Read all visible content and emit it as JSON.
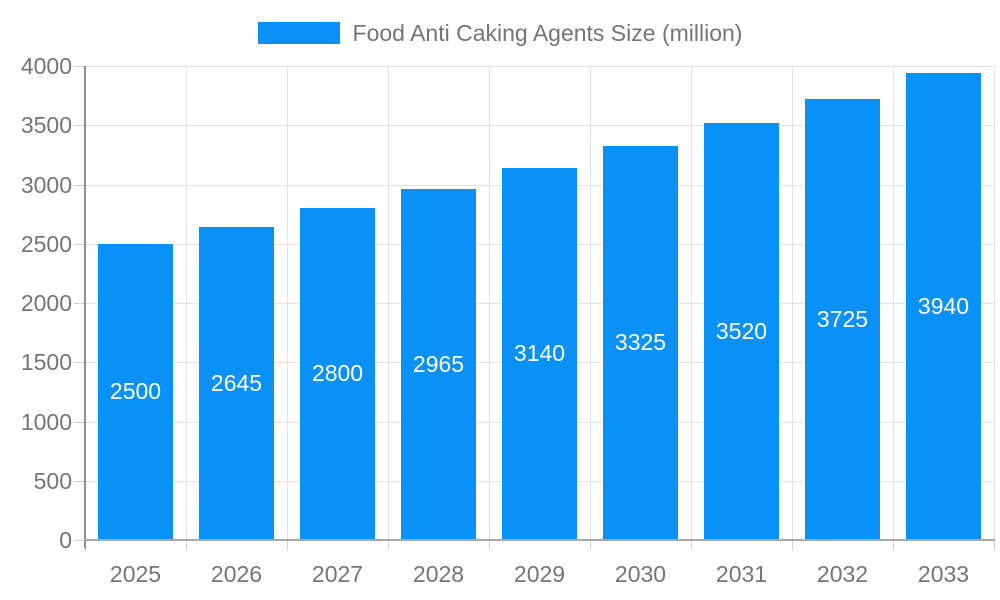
{
  "legend": {
    "label": "Food Anti Caking Agents Size (million)"
  },
  "chart_data": {
    "type": "bar",
    "title": "Food Anti Caking Agents Size (million)",
    "series_name": "Food Anti Caking Agents Size (million)",
    "categories": [
      "2025",
      "2026",
      "2027",
      "2028",
      "2029",
      "2030",
      "2031",
      "2032",
      "2033"
    ],
    "values": [
      2500,
      2645,
      2800,
      2965,
      3140,
      3325,
      3520,
      3725,
      3940
    ],
    "xlabel": "",
    "ylabel": "",
    "ylim": [
      0,
      4000
    ],
    "ytick_step": 500,
    "ytick_labels": [
      "0",
      "500",
      "1000",
      "1500",
      "2000",
      "2500",
      "3000",
      "3500",
      "4000"
    ],
    "grid": true,
    "legend_position": "top",
    "value_labels_shown": true,
    "colors": {
      "bar": "#0a91f7",
      "value_label": "#ffffff",
      "axis_text": "#757575",
      "gridline": "#e3e3e3",
      "tick": "#cfcfcf",
      "axis_line_left": "#8f8f8f",
      "axis_line_bottom": "#a8a8a8",
      "plot_border_right": "#e3e3e3",
      "background": "#ffffff"
    }
  }
}
